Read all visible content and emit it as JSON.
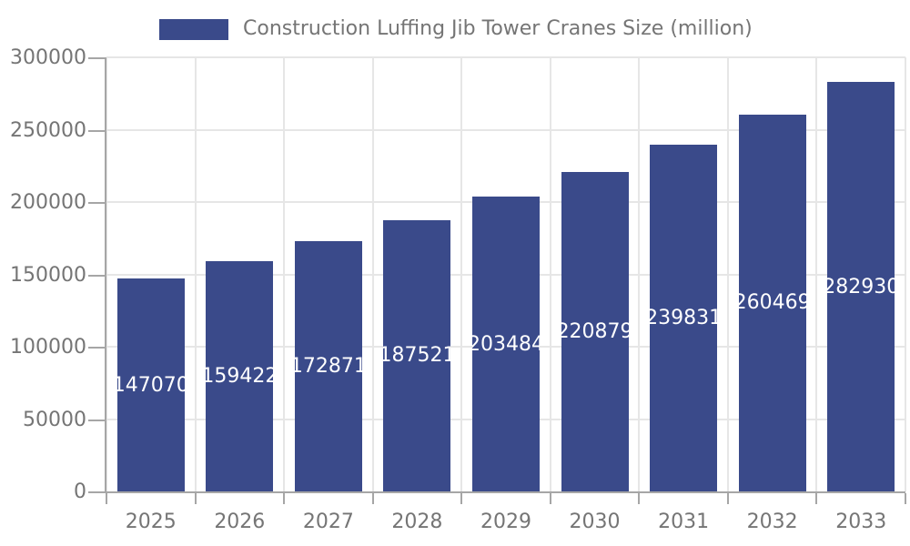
{
  "legend": {
    "label": "Construction Luffing Jib Tower Cranes Size (million)"
  },
  "colors": {
    "bar": "#3A4A8A",
    "bar_label": "#FFFFFF",
    "axis_text": "#757575",
    "spine": "#A6A6A6",
    "gridline": "#E6E6E6",
    "background": "#FFFFFF"
  },
  "chart_data": {
    "type": "bar",
    "title": "Construction Luffing Jib Tower Cranes Size (million)",
    "categories": [
      "2025",
      "2026",
      "2027",
      "2028",
      "2029",
      "2030",
      "2031",
      "2032",
      "2033"
    ],
    "values": [
      147070,
      159422,
      172871,
      187521,
      203484,
      220879,
      239831,
      260469,
      282930
    ],
    "xlabel": "",
    "ylabel": "",
    "ylim": [
      0,
      300000
    ],
    "yticks": [
      0,
      50000,
      100000,
      150000,
      200000,
      250000,
      300000
    ],
    "grid": true,
    "legend_position": "top-center",
    "bar_labels": "inside-center-white"
  }
}
